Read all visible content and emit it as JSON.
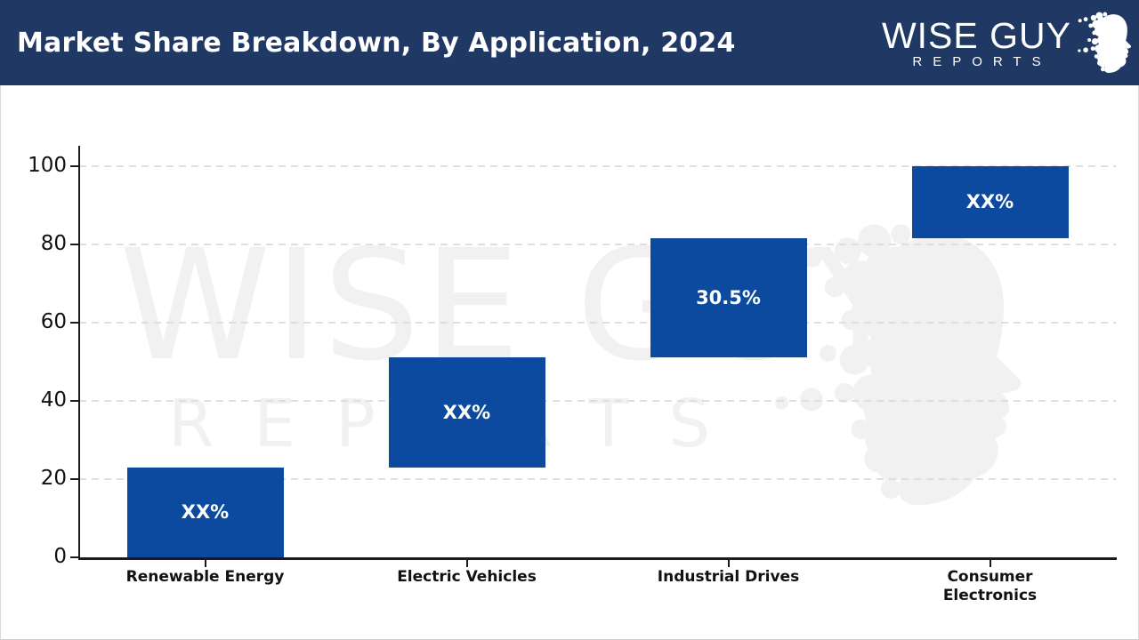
{
  "header": {
    "title": "Market Share Breakdown, By Application, 2024",
    "bg_color": "#1f3864",
    "logo": {
      "line1": "WISE GUY",
      "line2": "REPORTS"
    }
  },
  "watermark": {
    "line1": "WISE GUY",
    "line2": "REPORTS"
  },
  "chart_data": {
    "type": "bar",
    "subtype": "waterfall",
    "title": "Market Share Breakdown, By Application, 2024",
    "categories": [
      "Renewable Energy",
      "Electric Vehicles",
      "Industrial Drives",
      "Consumer Electronics"
    ],
    "category_lines": [
      [
        "Renewable Energy"
      ],
      [
        "Electric Vehicles"
      ],
      [
        "Industrial Drives"
      ],
      [
        "Consumer",
        "Electronics"
      ]
    ],
    "segments": [
      {
        "category": "Renewable Energy",
        "start": 0,
        "end": 23,
        "value": 23,
        "label": "XX%"
      },
      {
        "category": "Electric Vehicles",
        "start": 23,
        "end": 51,
        "value": 28,
        "label": "XX%"
      },
      {
        "category": "Industrial Drives",
        "start": 51,
        "end": 81.5,
        "value": 30.5,
        "label": "30.5%"
      },
      {
        "category": "Consumer Electronics",
        "start": 81.5,
        "end": 100,
        "value": 18.5,
        "label": "XX%"
      }
    ],
    "y_ticks": [
      0,
      20,
      40,
      60,
      80,
      100
    ],
    "ylim": [
      0,
      100
    ],
    "xlabel": "",
    "ylabel": "",
    "grid": "horizontal-dashed",
    "legend": "none",
    "colors": {
      "bar": "#0b4a9f",
      "bar_label": "#ffffff",
      "grid": "#dedede",
      "axis": "#1a1a1a",
      "header_bg": "#1f3864",
      "watermark": "#f1f1f1"
    }
  }
}
